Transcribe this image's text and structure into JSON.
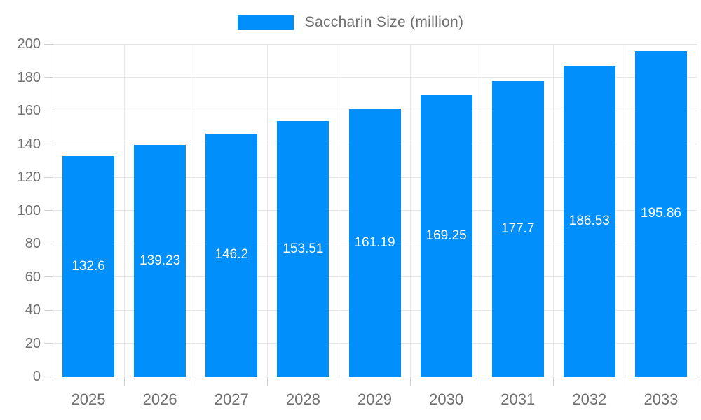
{
  "chart_data": {
    "type": "bar",
    "title": "",
    "xlabel": "",
    "ylabel": "",
    "legend": {
      "label": "Saccharin Size (million)",
      "position": "top"
    },
    "categories": [
      "2025",
      "2026",
      "2027",
      "2028",
      "2029",
      "2030",
      "2031",
      "2032",
      "2033"
    ],
    "series": [
      {
        "name": "Saccharin Size (million)",
        "values": [
          132.6,
          139.23,
          146.2,
          153.51,
          161.19,
          169.25,
          177.7,
          186.53,
          195.86
        ]
      }
    ],
    "value_labels": [
      "132.6",
      "139.23",
      "146.2",
      "153.51",
      "161.19",
      "169.25",
      "177.7",
      "186.53",
      "195.86"
    ],
    "ylim": [
      0,
      200
    ],
    "yticks": [
      0,
      20,
      40,
      60,
      80,
      100,
      120,
      140,
      160,
      180,
      200
    ],
    "grid": true,
    "colors": {
      "bar": "#008FFB",
      "axis_label": "#707070",
      "legend_text": "#707070",
      "grid_line": "#e6e6e6",
      "axis_line": "#b1b1b1",
      "tick_line": "#cfcfcf",
      "value_label": "#ffffff",
      "background": "#ffffff"
    }
  }
}
